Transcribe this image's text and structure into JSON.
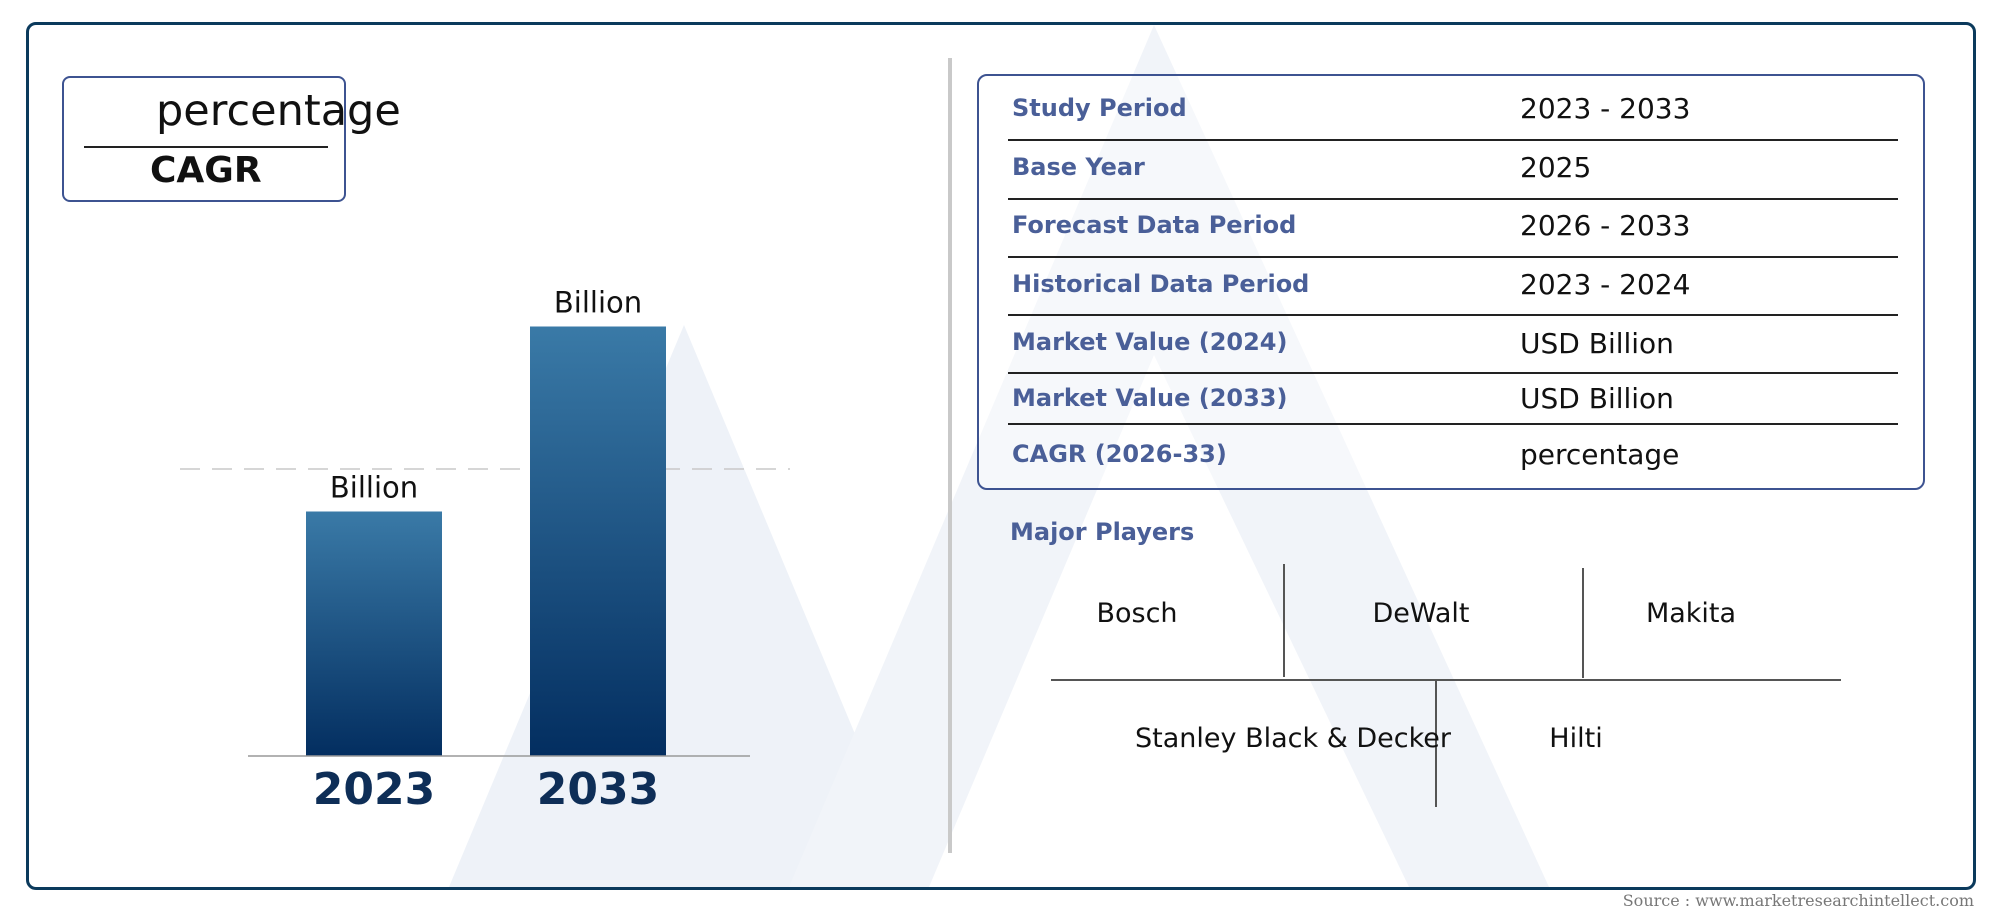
{
  "chart_data": {
    "type": "bar",
    "categories": [
      "2023",
      "2033"
    ],
    "values": [
      48.9,
      85.9
    ],
    "value_labels": [
      "Billion",
      "Billion"
    ],
    "ylim": [
      0,
      100
    ],
    "gridline": "dashed",
    "bar_colors": [
      "#3a7aa7",
      "#032e60"
    ],
    "category_color": "#0e2e57"
  },
  "cagr": {
    "value": "percentage",
    "label": "CAGR"
  },
  "info": {
    "rows": [
      {
        "label": "Study Period",
        "value": "2023 - 2033"
      },
      {
        "label": "Base Year",
        "value": "2025"
      },
      {
        "label": "Forecast Data Period",
        "value": "2026 - 2033"
      },
      {
        "label": "Historical Data Period",
        "value": "2023 - 2024"
      },
      {
        "label": "Market Value (2024)",
        "value": "USD Billion"
      },
      {
        "label": "Market Value (2033)",
        "value": "USD Billion"
      },
      {
        "label": "CAGR (2026-33)",
        "value": "percentage"
      }
    ]
  },
  "players": {
    "title": "Major Players",
    "row1": [
      "Bosch",
      "DeWalt",
      "Makita"
    ],
    "row2": [
      "Stanley Black & Decker",
      "Hilti"
    ]
  },
  "source": "Source : www.marketresearchintellect.com",
  "colors": {
    "frame": "#0b3a5c",
    "box_border": "#3d5391",
    "label": "#4a5f98",
    "watermark": "#eef2f8"
  }
}
